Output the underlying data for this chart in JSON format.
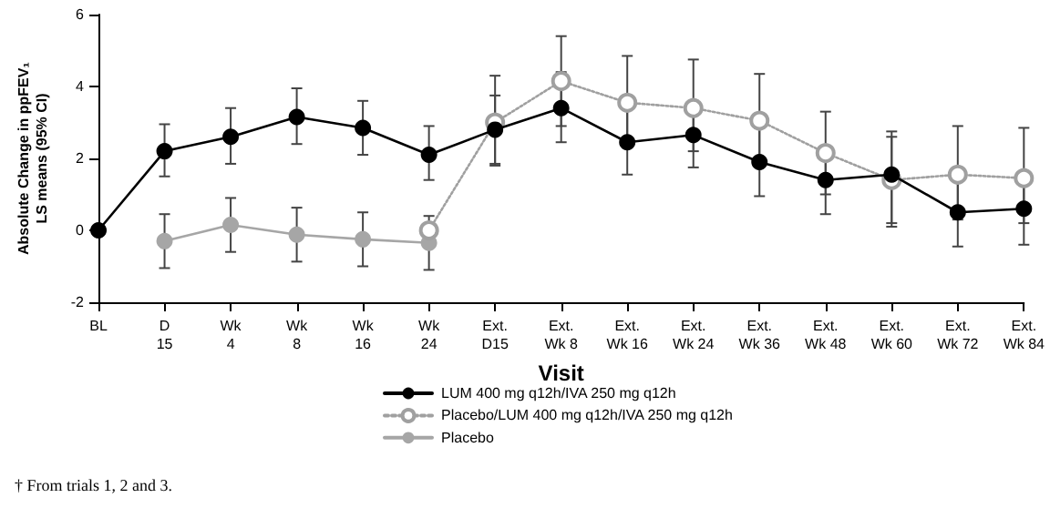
{
  "chart_data": {
    "type": "line",
    "xlabel": "Visit",
    "ylabel": "Absolute Change in ppFEV₁\nLS means (95% CI)",
    "annotations": [
      "† From trials 1, 2 and 3."
    ],
    "categories": [
      "BL",
      "D\n15",
      "Wk\n4",
      "Wk\n8",
      "Wk\n16",
      "Wk\n24",
      "Ext.\nD15",
      "Ext.\nWk 8",
      "Ext.\nWk 16",
      "Ext.\nWk 24",
      "Ext.\nWk 36",
      "Ext.\nWk 48",
      "Ext.\nWk 60",
      "Ext.\nWk 72",
      "Ext.\nWk 84"
    ],
    "ylim": [
      -2,
      6
    ],
    "yticks": [
      -2,
      0,
      2,
      4,
      6
    ],
    "grid": false,
    "legend": "bottom",
    "marker": "circle",
    "series": [
      {
        "name": "LUM 400 mg q12h/IVA 250 mg q12h",
        "color": "#000000",
        "line_style": "solid",
        "values": [
          0,
          2.2,
          2.6,
          3.15,
          2.85,
          2.1,
          2.8,
          3.4,
          2.45,
          2.65,
          1.9,
          1.4,
          1.55,
          0.5,
          0.6
        ],
        "errors": [
          null,
          [
            1.5,
            2.95
          ],
          [
            1.85,
            3.4
          ],
          [
            2.4,
            3.95
          ],
          [
            2.1,
            3.6
          ],
          [
            1.4,
            2.9
          ],
          [
            1.8,
            3.75
          ],
          [
            2.45,
            4.4
          ],
          [
            1.55,
            3.4
          ],
          [
            1.75,
            3.6
          ],
          [
            0.95,
            2.85
          ],
          [
            0.45,
            2.35
          ],
          [
            0.1,
            2.75
          ],
          [
            -0.45,
            1.45
          ],
          [
            -0.4,
            1.55
          ]
        ]
      },
      {
        "name": "Placebo/LUM 400 mg q12h/IVA 250 mg q12h",
        "color": "#a0a0a0",
        "line_style": "dotted",
        "values": [
          null,
          null,
          null,
          null,
          null,
          0,
          3.0,
          4.15,
          3.55,
          3.4,
          3.05,
          2.15,
          1.4,
          1.55,
          1.45
        ],
        "errors": [
          null,
          null,
          null,
          null,
          null,
          null,
          [
            1.85,
            4.3
          ],
          [
            2.9,
            5.4
          ],
          [
            2.3,
            4.85
          ],
          [
            2.2,
            4.75
          ],
          [
            1.85,
            4.35
          ],
          [
            1.0,
            3.3
          ],
          [
            0.2,
            2.6
          ],
          [
            0.3,
            2.9
          ],
          [
            0.2,
            2.85
          ]
        ]
      },
      {
        "name": "Placebo",
        "color": "#a6a6a6",
        "line_style": "solid",
        "values": [
          null,
          -0.3,
          0.15,
          -0.12,
          -0.25,
          -0.35,
          null,
          null,
          null,
          null,
          null,
          null,
          null,
          null,
          null
        ],
        "errors": [
          null,
          [
            -1.05,
            0.45
          ],
          [
            -0.6,
            0.9
          ],
          [
            -0.87,
            0.63
          ],
          [
            -1.0,
            0.5
          ],
          [
            -1.1,
            0.4
          ],
          null,
          null,
          null,
          null,
          null,
          null,
          null,
          null,
          null
        ]
      }
    ]
  }
}
